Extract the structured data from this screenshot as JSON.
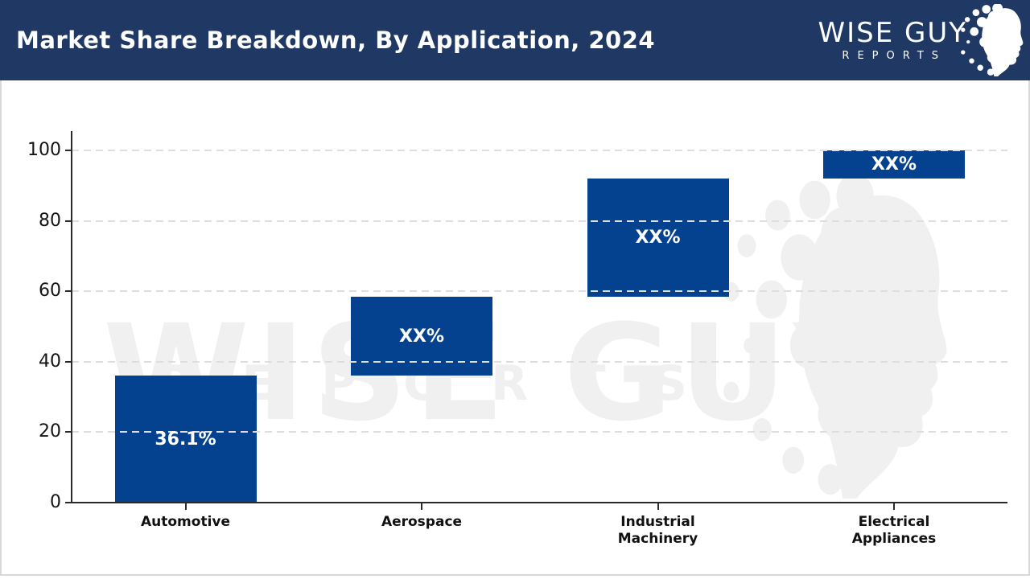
{
  "colors": {
    "header_bg": "#1f3864",
    "bar_blue": "#04428f",
    "axis": "#2a2a2a",
    "gridline": "#dedede",
    "watermark": "#f0f0f0"
  },
  "header": {
    "title": "Market Share Breakdown, By Application, 2024",
    "logo": {
      "line1": "WISE GUY",
      "line2": "REPORTS",
      "face_icon": "wise-guy-face-icon"
    }
  },
  "watermark": {
    "line1": "WISE GUY",
    "line2": "REPORTS",
    "face_icon": "wise-guy-face-watermark-icon"
  },
  "chart_data": {
    "type": "bar",
    "subtype": "waterfall",
    "title": "Market Share Breakdown, By Application, 2024",
    "categories": [
      "Automotive",
      "Aerospace",
      "Industrial Machinery",
      "Electrical Appliances"
    ],
    "segments": [
      {
        "category": "Automotive",
        "tick_lines": [
          "Automotive"
        ],
        "start": 0,
        "end": 36.1,
        "label": "36.1%"
      },
      {
        "category": "Aerospace",
        "tick_lines": [
          "Aerospace"
        ],
        "start": 36.1,
        "end": 58.4,
        "label": "XX%"
      },
      {
        "category": "Industrial Machinery",
        "tick_lines": [
          "Industrial",
          "Machinery"
        ],
        "start": 58.4,
        "end": 92.0,
        "label": "XX%"
      },
      {
        "category": "Electrical Appliances",
        "tick_lines": [
          "Electrical",
          "Appliances"
        ],
        "start": 92.0,
        "end": 100.0,
        "label": "XX%"
      }
    ],
    "ylim": [
      0,
      100
    ],
    "yticks": [
      0,
      20,
      40,
      60,
      80,
      100
    ],
    "xlabel": "",
    "ylabel": "",
    "grid": "horizontal-dashed",
    "legend": "none",
    "bar_color": "#04428f",
    "bar_label_color": "#ffffff"
  }
}
